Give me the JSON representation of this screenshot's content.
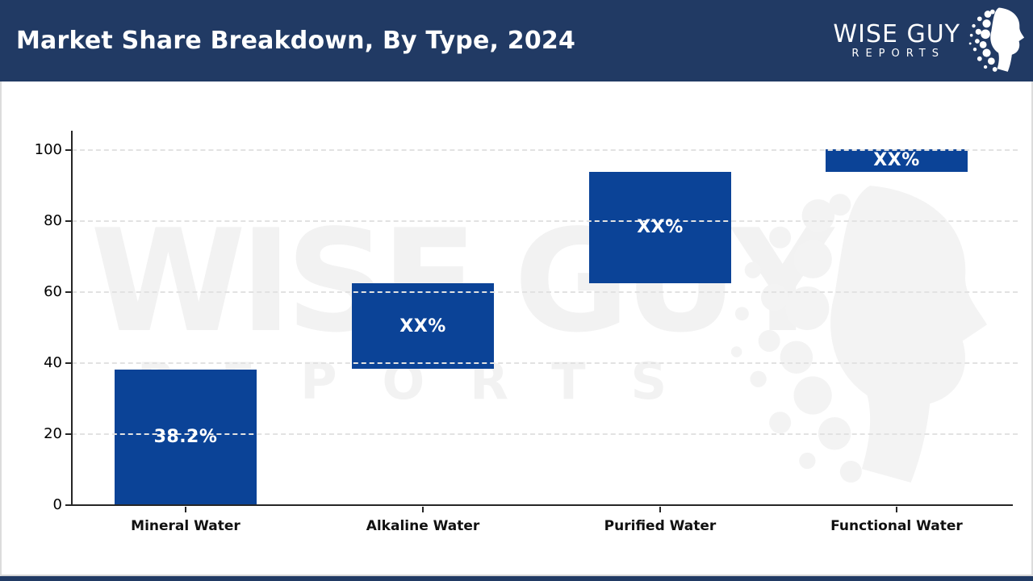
{
  "header": {
    "title": "Market Share Breakdown, By Type, 2024",
    "logo": {
      "line1": "WISE GUY",
      "line2": "REPORTS"
    }
  },
  "watermark": {
    "line1": "WISE GUY",
    "line2": "REPORTS"
  },
  "chart_data": {
    "type": "bar",
    "subtype": "waterfall-market-share",
    "title": "Market Share Breakdown, By Type, 2024",
    "categories": [
      "Mineral Water",
      "Alkaline Water",
      "Purified Water",
      "Functional Water"
    ],
    "segments": [
      {
        "category": "Mineral Water",
        "from": 0,
        "to": 38.2,
        "label": "38.2%"
      },
      {
        "category": "Alkaline Water",
        "from": 38.4,
        "to": 62.5,
        "label": "XX%"
      },
      {
        "category": "Purified Water",
        "from": 62.5,
        "to": 93.9,
        "label": "XX%"
      },
      {
        "category": "Functional Water",
        "from": 93.9,
        "to": 100.2,
        "label": "XX%"
      }
    ],
    "y_ticks": [
      0,
      20,
      40,
      60,
      80,
      100
    ],
    "ylim": [
      0,
      105
    ],
    "xlabel": "",
    "ylabel": "",
    "grid": "horizontal-dashed-over-bars",
    "legend": "none",
    "bar_color": "#0b4397",
    "bar_label_color": "#ffffff"
  },
  "colors": {
    "header_bg": "#213a64",
    "footer_bg": "#213a64",
    "bar": "#0b4397",
    "grid": "#e2e2e2",
    "axis": "#262626",
    "watermark": "#f2f2f2",
    "title_text": "#ffffff"
  }
}
